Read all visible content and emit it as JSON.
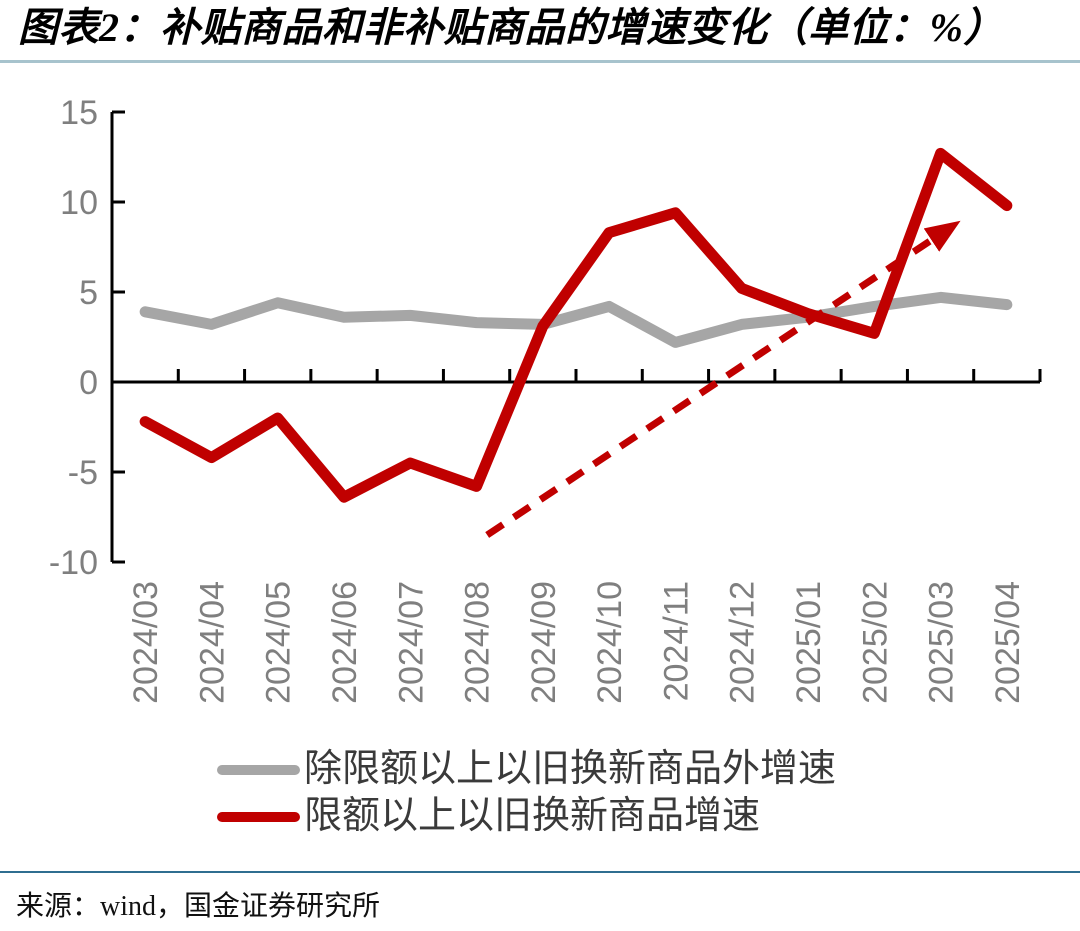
{
  "page": {
    "source": "来源：wind，国金证券研究所"
  },
  "colors": {
    "series_red": "#c00000",
    "series_gray": "#a6a6a6",
    "axis": "#000000",
    "tick_label": "#7f7f7f",
    "title_color": "#000000",
    "legend_text": "#3a3a3a",
    "rule_top": "#a7c3cd",
    "rule_bottom": "#2f6e90"
  },
  "chart_data": {
    "type": "line",
    "title": "图表2：补贴商品和非补贴商品的增速变化（单位：%）",
    "unit": "%",
    "categories": [
      "2024/03",
      "2024/04",
      "2024/05",
      "2024/06",
      "2024/07",
      "2024/08",
      "2024/09",
      "2024/10",
      "2024/11",
      "2024/12",
      "2025/01",
      "2025/02",
      "2025/03",
      "2025/04"
    ],
    "series": [
      {
        "name": "除限额以上以旧换新商品外增速",
        "color": "#a6a6a6",
        "values": [
          3.9,
          3.2,
          4.4,
          3.6,
          3.7,
          3.3,
          3.2,
          4.2,
          2.2,
          3.2,
          3.6,
          4.2,
          4.7,
          4.3
        ]
      },
      {
        "name": "限额以上以旧换新商品增速",
        "color": "#c00000",
        "values": [
          -2.2,
          -4.2,
          -2.0,
          -6.4,
          -4.5,
          -5.8,
          3.1,
          8.3,
          9.4,
          5.2,
          3.8,
          2.7,
          12.7,
          9.8
        ]
      }
    ],
    "ylim": [
      -10,
      15
    ],
    "yticks": [
      15,
      10,
      5,
      0,
      -5,
      -10
    ],
    "grid": false,
    "legend_position": "bottom",
    "annotation": {
      "trend_arrow": {
        "style": "dashed",
        "color": "#c00000",
        "from": {
          "x_index": 5.16,
          "value": -8.5
        },
        "to": {
          "x_index": 11.95,
          "value": 8.1
        }
      }
    }
  }
}
